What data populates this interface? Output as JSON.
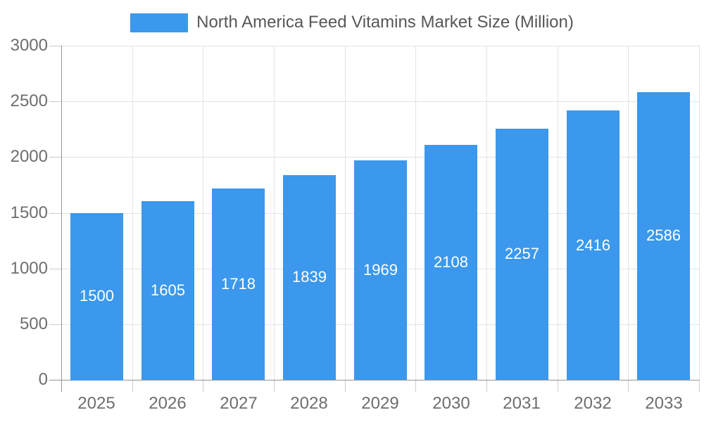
{
  "legend": {
    "label": "North America Feed Vitamins Market Size (Million)"
  },
  "colors": {
    "bar": "#3b98ec",
    "grid": "#e4e4e4",
    "tick": "#cccccc",
    "axis": "#949494",
    "tick_label": "#6e6e6e",
    "legend_text": "#575757",
    "value_label": "#ffffff",
    "background": "#ffffff"
  },
  "chart_data": {
    "type": "bar",
    "title": "North America Feed Vitamins Market Size (Million)",
    "categories": [
      "2025",
      "2026",
      "2027",
      "2028",
      "2029",
      "2030",
      "2031",
      "2032",
      "2033"
    ],
    "values": [
      1500,
      1605,
      1718,
      1839,
      1969,
      2108,
      2257,
      2416,
      2586
    ],
    "xlabel": "",
    "ylabel": "",
    "ylim": [
      0,
      3000
    ],
    "y_ticks": [
      0,
      500,
      1000,
      1500,
      2000,
      2500,
      3000
    ],
    "grid": true,
    "legend_position": "top",
    "value_label_position": "inside-center",
    "value_label_color": "#ffffff"
  }
}
